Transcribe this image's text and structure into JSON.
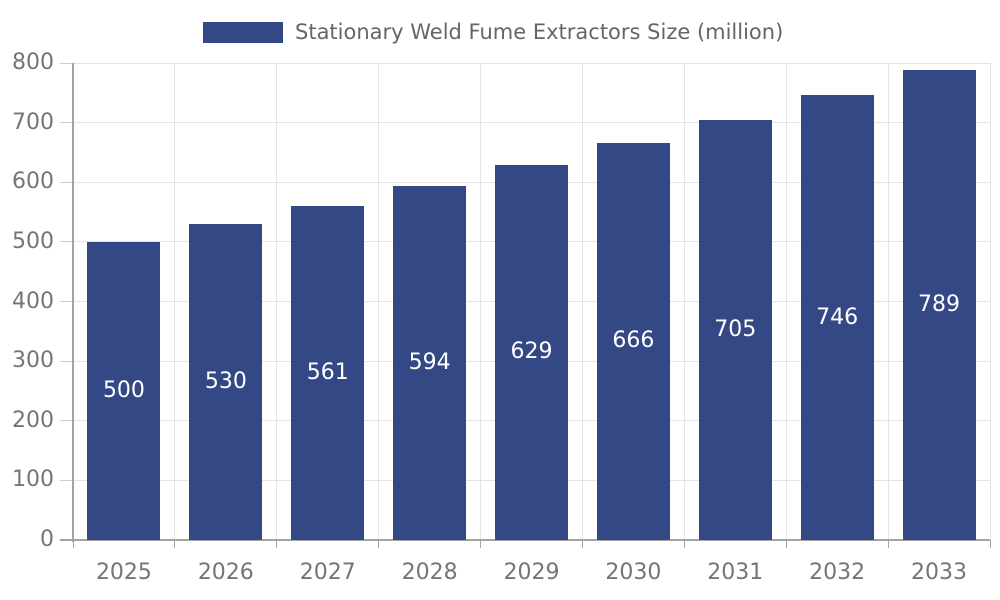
{
  "legend": {
    "label": "Stationary Weld Fume Extractors Size (million)"
  },
  "chart_data": {
    "type": "bar",
    "title": "",
    "xlabel": "",
    "ylabel": "",
    "categories": [
      "2025",
      "2026",
      "2027",
      "2028",
      "2029",
      "2030",
      "2031",
      "2032",
      "2033"
    ],
    "values": [
      500,
      530,
      561,
      594,
      629,
      666,
      705,
      746,
      789
    ],
    "series_name": "Stationary Weld Fume Extractors Size (million)",
    "data_labels": [
      "500",
      "530",
      "561",
      "594",
      "629",
      "666",
      "705",
      "746",
      "789"
    ],
    "ylim": [
      0,
      800
    ],
    "ytick_step": 100,
    "ytick_labels": [
      "0",
      "100",
      "200",
      "300",
      "400",
      "500",
      "600",
      "700",
      "800"
    ],
    "grid": true,
    "legend_position": "top",
    "colors": {
      "bar": "#344885",
      "bar_label": "#ffffff",
      "grid_line": "#e4e4e4",
      "axis_line": "#a3a3a3",
      "tick_text": "#757575",
      "legend_text": "#666666",
      "background": "#ffffff"
    }
  }
}
